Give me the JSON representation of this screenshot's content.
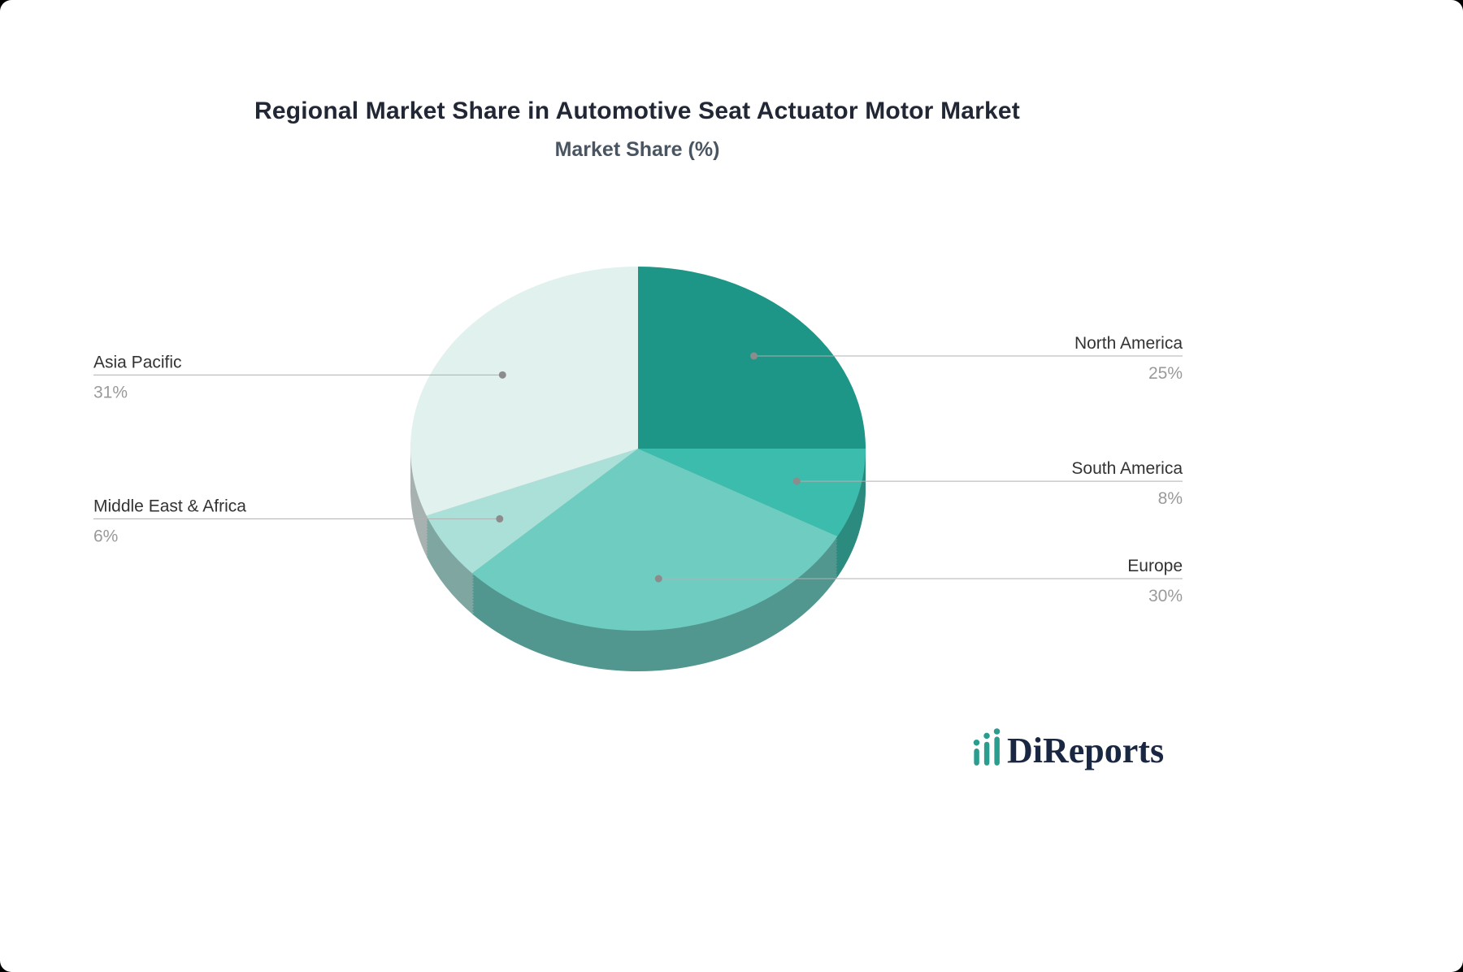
{
  "chart_data": {
    "type": "pie",
    "title": "Regional Market Share in Automotive Seat Actuator Motor Market",
    "subtitle": "Market Share (%)",
    "unit": "%",
    "style": "3d-pie",
    "start_angle_deg": -90,
    "direction": "clockwise",
    "legend_position": "none",
    "slices": [
      {
        "label": "North America",
        "value": 25,
        "color": "#1d9587"
      },
      {
        "label": "South America",
        "value": 8,
        "color": "#3cbcac"
      },
      {
        "label": "Europe",
        "value": 30,
        "color": "#6fccc1"
      },
      {
        "label": "Middle East & Africa",
        "value": 6,
        "color": "#abe0d9"
      },
      {
        "label": "Asia Pacific",
        "value": 31,
        "color": "#e1f1ee"
      }
    ],
    "label_color": "#333333",
    "value_color": "#9a9a9a",
    "leader_line_color": "#b0b0b0",
    "leader_dot_color": "#8c8c8c"
  },
  "logo": {
    "text": "DiReports",
    "accent_color": "#2a9d8f",
    "text_color": "#1a2742"
  }
}
